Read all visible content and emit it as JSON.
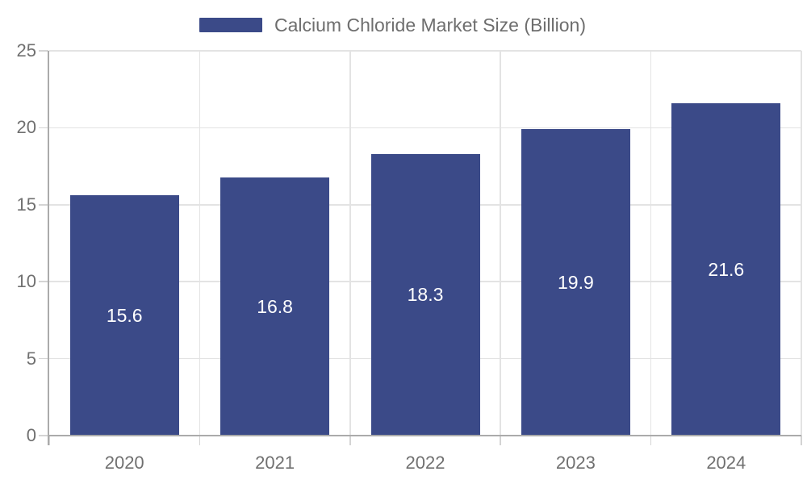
{
  "legend": {
    "label": "Calcium Chloride Market Size (Billion)"
  },
  "chart_data": {
    "type": "bar",
    "title": "Calcium Chloride Market Size (Billion)",
    "categories": [
      "2020",
      "2021",
      "2022",
      "2023",
      "2024"
    ],
    "values": [
      15.6,
      16.8,
      18.3,
      19.9,
      21.6
    ],
    "value_labels": [
      "15.6",
      "16.8",
      "18.3",
      "19.9",
      "21.6"
    ],
    "xlabel": "",
    "ylabel": "",
    "ylim": [
      0,
      25
    ],
    "yticks": [
      0,
      5,
      10,
      15,
      20,
      25
    ],
    "ytick_labels": [
      "0",
      "5",
      "10",
      "15",
      "20",
      "25"
    ],
    "grid": true,
    "legend_position": "top-center",
    "colors": {
      "bar": "#3B4A88",
      "value_label": "#FFFFFF",
      "axis_text": "#707070",
      "legend_text": "#6E6E6E",
      "gridline": "#E3E3E3",
      "spine": "#ABABAB",
      "tick": "#D4D4D4",
      "background": "#FFFFFF"
    }
  }
}
